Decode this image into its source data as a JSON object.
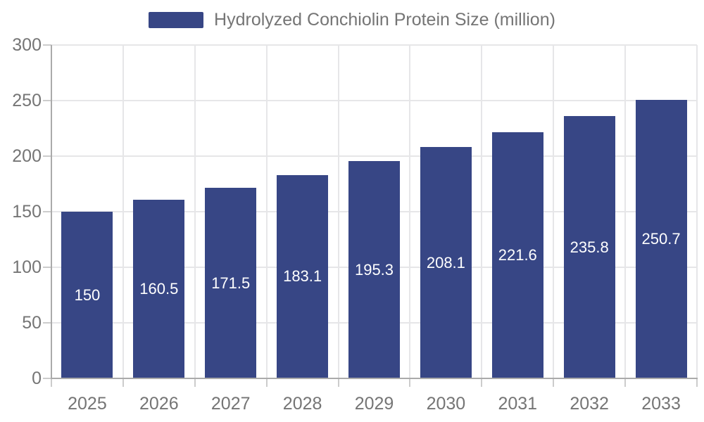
{
  "legend": {
    "label": "Hydrolyzed Conchiolin Protein Size (million)",
    "swatch_color": "#374685"
  },
  "chart_data": {
    "type": "bar",
    "title": "",
    "categories": [
      "2025",
      "2026",
      "2027",
      "2028",
      "2029",
      "2030",
      "2031",
      "2032",
      "2033"
    ],
    "series": [
      {
        "name": "Hydrolyzed Conchiolin Protein Size (million)",
        "values": [
          150,
          160.5,
          171.5,
          183.1,
          195.3,
          208.1,
          221.6,
          235.8,
          250.7
        ]
      }
    ],
    "xlabel": "",
    "ylabel": "",
    "ylim": [
      0,
      300
    ],
    "yticks": [
      0,
      50,
      100,
      150,
      200,
      250,
      300
    ],
    "grid": true,
    "legend_position": "top",
    "bar_color": "#374685",
    "value_label_color": "#ffffff",
    "axis_label_color": "#757575",
    "gridline_color": "#e6e6e8",
    "axis_line_color": "#aaaaaa"
  }
}
